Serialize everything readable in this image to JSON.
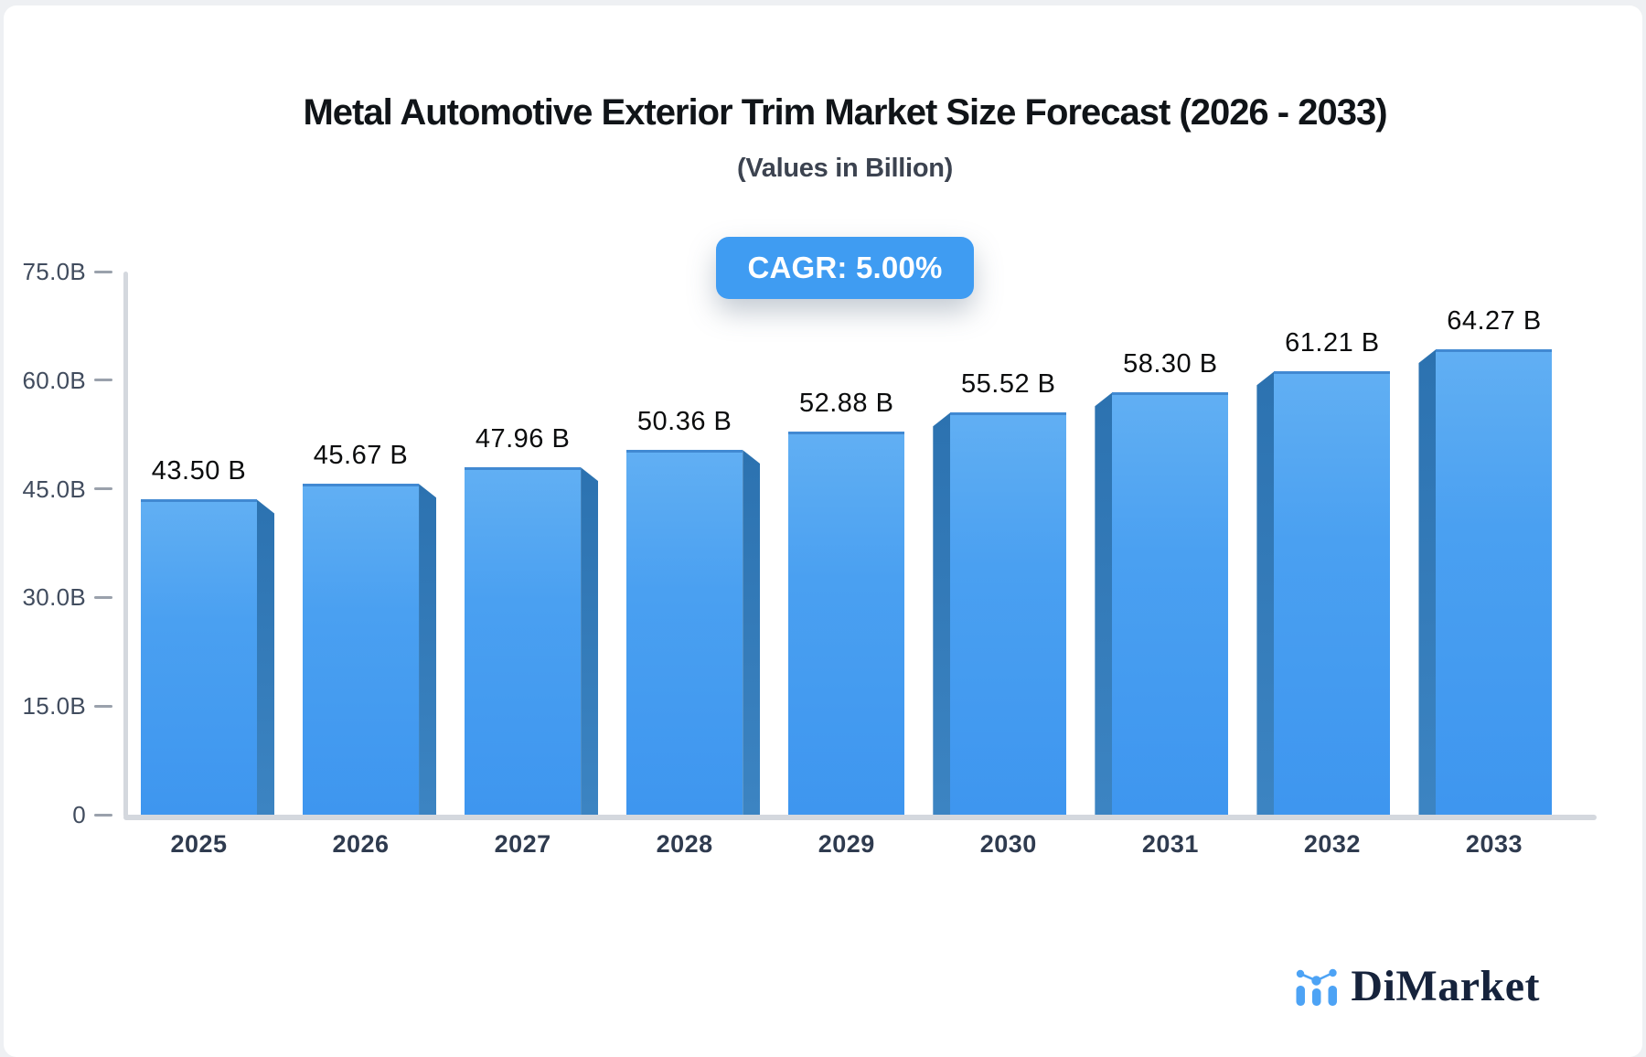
{
  "header": {
    "title": "Metal Automotive Exterior Trim Market Size Forecast (2026 - 2033)",
    "subtitle": "(Values in Billion)"
  },
  "badge": {
    "label": "CAGR: 5.00%",
    "background": "#3f9cf2",
    "text_color": "#ffffff"
  },
  "chart_data": {
    "type": "bar",
    "title": "Metal Automotive Exterior Trim Market Size Forecast (2026 - 2033)",
    "subtitle": "(Values in Billion)",
    "categories": [
      "2025",
      "2026",
      "2027",
      "2028",
      "2029",
      "2030",
      "2031",
      "2032",
      "2033"
    ],
    "values": [
      43.5,
      45.67,
      47.96,
      50.36,
      52.88,
      55.52,
      58.3,
      61.21,
      64.27
    ],
    "value_labels": [
      "43.50 B",
      "45.67 B",
      "47.96 B",
      "50.36 B",
      "52.88 B",
      "55.52 B",
      "58.30 B",
      "61.21 B",
      "64.27 B"
    ],
    "unit": "B",
    "cagr_label": "CAGR: 5.00%",
    "ylim": [
      0,
      75
    ],
    "yticks": [
      {
        "value": 0,
        "label": "0"
      },
      {
        "value": 15,
        "label": "15.0B"
      },
      {
        "value": 30,
        "label": "30.0B"
      },
      {
        "value": 45,
        "label": "45.0B"
      },
      {
        "value": 60,
        "label": "60.0B"
      },
      {
        "value": 75,
        "label": "75.0B"
      }
    ],
    "grid": false,
    "legend_position": "none",
    "bar_style": "3d-extruded, side faces angled toward chart center",
    "bar_face_color": "#459df1",
    "bar_face_gradient": [
      "#61aff3",
      "#3e96ef"
    ],
    "bar_side_color": "#2e77b5",
    "axis_color": "#d4d8de",
    "tick_text_color": "#414c5e"
  },
  "logo": {
    "text": "DiMarket",
    "icon": "mini-bar-line-chart-icon",
    "text_color": "#16233c",
    "icon_color": "#4da3f5"
  }
}
